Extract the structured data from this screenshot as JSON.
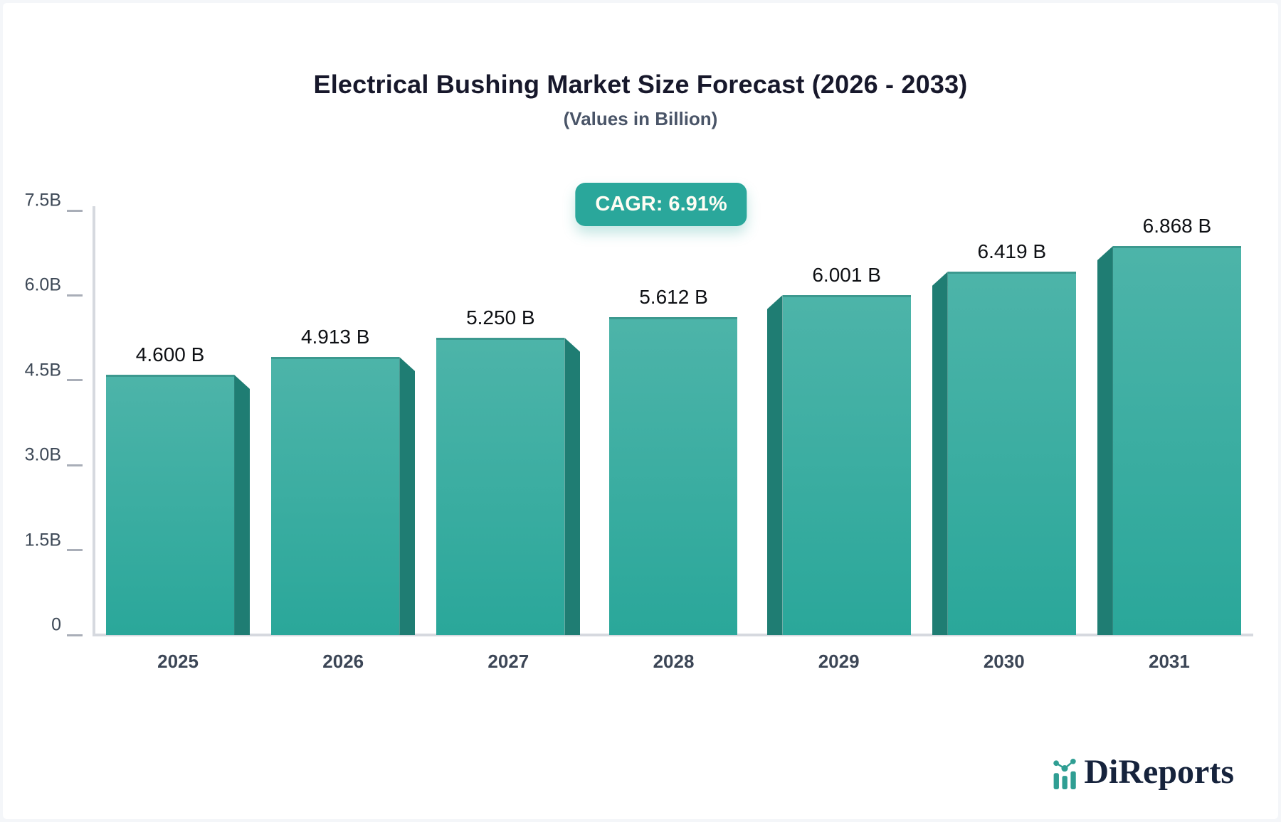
{
  "header": {
    "title": "Electrical Bushing Market Size Forecast (2026 - 2033)",
    "subtitle": "(Values in Billion)",
    "cagr_label": "CAGR: 6.91%"
  },
  "chart_data": {
    "type": "bar",
    "title": "Electrical Bushing Market Size Forecast (2026 - 2033)",
    "subtitle": "(Values in Billion)",
    "categories": [
      "2025",
      "2026",
      "2027",
      "2028",
      "2029",
      "2030",
      "2031"
    ],
    "values": [
      4.6,
      4.913,
      5.25,
      5.612,
      6.001,
      6.419,
      6.868
    ],
    "value_labels": [
      "4.600 B",
      "4.913 B",
      "5.250 B",
      "5.612 B",
      "6.001 B",
      "6.419 B",
      "6.868 B"
    ],
    "unit": "Billion",
    "cagr": "6.91%",
    "xlabel": "",
    "ylabel": "",
    "ylim": [
      0,
      7.5
    ],
    "ytick_labels": [
      "0",
      "1.5B",
      "3.0B",
      "4.5B",
      "6.0B",
      "7.5B"
    ],
    "ytick_values": [
      0,
      1.5,
      3.0,
      4.5,
      6.0,
      7.5
    ],
    "grid": "off",
    "legend": "none",
    "bar_style": "3d-perspective"
  },
  "colors": {
    "accent": "#2aa79b",
    "bar_face_top": "#4db4a9",
    "bar_face_bottom": "#2aa79a",
    "bar_side": "#1f7d73",
    "axis_line": "#d6d9df",
    "title_text": "#17182b",
    "subtitle_text": "#4a5568",
    "tick_text": "#3d4856",
    "logo_text": "#16233c",
    "logo_icon": "#2f9e93"
  },
  "branding": {
    "logo_text": "DiReports",
    "logo_icon": "bar-chart-trend-icon"
  }
}
